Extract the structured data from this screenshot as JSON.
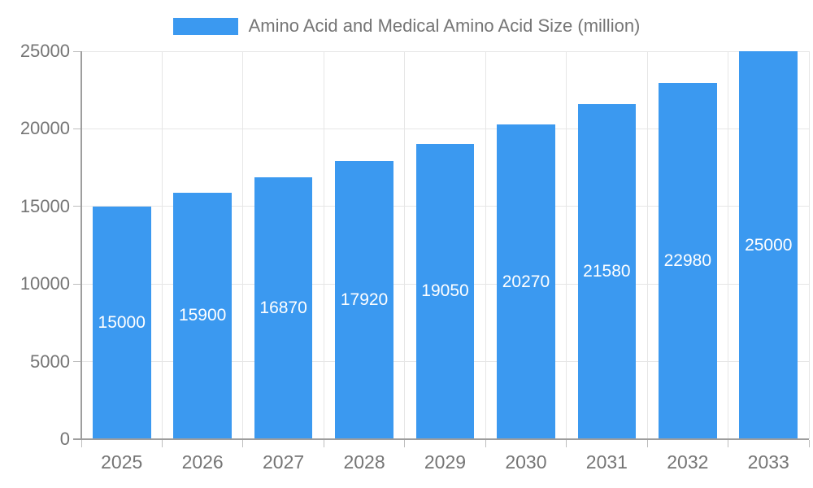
{
  "chart_data": {
    "type": "bar",
    "title": "Amino Acid and Medical Amino Acid Size (million)",
    "categories": [
      "2025",
      "2026",
      "2027",
      "2028",
      "2029",
      "2030",
      "2031",
      "2032",
      "2033"
    ],
    "values": [
      15000,
      15900,
      16870,
      17920,
      19050,
      20270,
      21580,
      22980,
      25000
    ],
    "value_labels": [
      "15000",
      "15900",
      "16870",
      "17920",
      "19050",
      "20270",
      "21580",
      "22980",
      "25000"
    ],
    "y_ticks": [
      0,
      5000,
      10000,
      15000,
      20000,
      25000
    ],
    "y_tick_labels": [
      "0",
      "5000",
      "10000",
      "15000",
      "20000",
      "25000"
    ],
    "ylim": [
      0,
      25000
    ],
    "xlabel": "",
    "ylabel": "",
    "legend_position": "top",
    "grid": true,
    "colors": {
      "bar": "#3b99f0",
      "value_label": "#ffffff",
      "axis_text": "#757575",
      "title_text": "#757575",
      "gridline": "#e6e6e6",
      "axis_line": "#9e9e9e",
      "tick_mark": "#bdbdbd",
      "background": "#ffffff"
    }
  }
}
